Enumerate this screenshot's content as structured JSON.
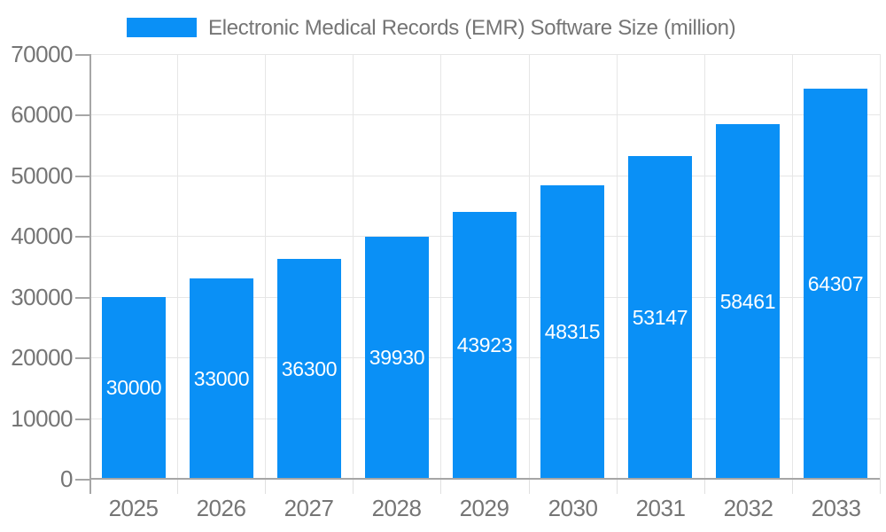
{
  "chart_data": {
    "type": "bar",
    "title": "Electronic Medical Records (EMR) Software Size (million)",
    "categories": [
      "2025",
      "2026",
      "2027",
      "2028",
      "2029",
      "2030",
      "2031",
      "2032",
      "2033"
    ],
    "values": [
      30000,
      33000,
      36300,
      39930,
      43923,
      48315,
      53147,
      58461,
      64307
    ],
    "xlabel": "",
    "ylabel": "",
    "ylim": [
      0,
      70000
    ],
    "yticks": [
      0,
      10000,
      20000,
      30000,
      40000,
      50000,
      60000,
      70000
    ],
    "grid": true,
    "legend_position": "top",
    "bar_color": "#0A90F6",
    "value_label_color": "#FFFFFF",
    "axis_label_color": "#757575",
    "grid_color": "#E6E6E6",
    "axis_line_color": "#A6A6A6",
    "outer_tick_color": "#E0E0E0",
    "background_color": "#FFFFFF"
  }
}
